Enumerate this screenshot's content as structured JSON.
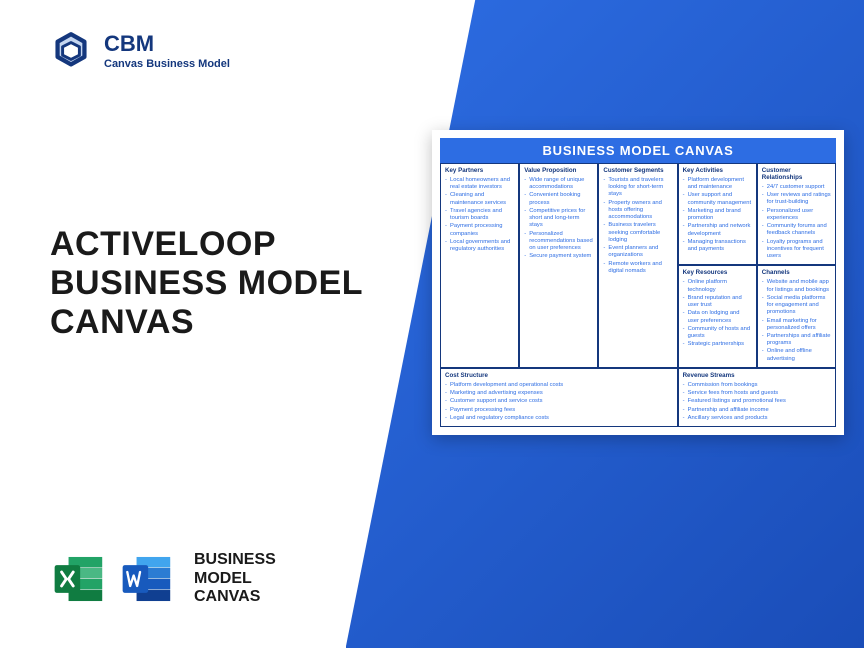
{
  "logo": {
    "title": "CBM",
    "subtitle": "Canvas Business Model",
    "icon_color": "#14377d"
  },
  "main_title": {
    "line1": "ACTIVELOOP",
    "line2": "BUSINESS MODEL",
    "line3": "CANVAS"
  },
  "footer": {
    "excel_color": "#107c41",
    "word_color": "#185abd",
    "label": {
      "line1": "BUSINESS",
      "line2": "MODEL",
      "line3": "CANVAS"
    }
  },
  "canvas": {
    "header": "BUSINESS MODEL CANVAS",
    "background_color": "#ffffff",
    "header_bg": "#2d6de3",
    "border_color": "#14377d",
    "text_color": "#2d6de3",
    "sections": {
      "key_partners": {
        "title": "Key Partners",
        "items": [
          "Local homeowners and real estate investors",
          "Cleaning and maintenance services",
          "Travel agencies and tourism boards",
          "Payment processing companies",
          "Local governments and regulatory authorities"
        ]
      },
      "key_activities": {
        "title": "Key Activities",
        "items": [
          "Platform development and maintenance",
          "User support and community management",
          "Marketing and brand promotion",
          "Partnership and network development",
          "Managing transactions and payments"
        ]
      },
      "value_proposition": {
        "title": "Value Proposition",
        "items": [
          "Wide range of unique accommodations",
          "Convenient booking process",
          "Competitive prices for short and long-term stays",
          "Personalized recommendations based on user preferences",
          "Secure payment system"
        ]
      },
      "customer_relationships": {
        "title": "Customer Relationships",
        "items": [
          "24/7 customer support",
          "User reviews and ratings for trust-building",
          "Personalized user experiences",
          "Community forums and feedback channels",
          "Loyalty programs and incentives for frequent users"
        ]
      },
      "customer_segments": {
        "title": "Customer Segments",
        "items": [
          "Tourists and travelers looking for short-term stays",
          "Property owners and hosts offering accommodations",
          "Business travelers seeking comfortable lodging",
          "Event planners and organizations",
          "Remote workers and digital nomads"
        ]
      },
      "key_resources": {
        "title": "Key Resources",
        "items": [
          "Online platform technology",
          "Brand reputation and user trust",
          "Data on lodging and user preferences",
          "Community of hosts and guests",
          "Strategic partnerships"
        ]
      },
      "channels": {
        "title": "Channels",
        "items": [
          "Website and mobile app for listings and bookings",
          "Social media platforms for engagement and promotions",
          "Email marketing for personalized offers",
          "Partnerships and affiliate programs",
          "Online and offline advertising"
        ]
      },
      "cost_structure": {
        "title": "Cost Structure",
        "items": [
          "Platform development and operational costs",
          "Marketing and advertising expenses",
          "Customer support and service costs",
          "Payment processing fees",
          "Legal and regulatory compliance costs"
        ]
      },
      "revenue_streams": {
        "title": "Revenue Streams",
        "items": [
          "Commission from bookings",
          "Service fees from hosts and guests",
          "Featured listings and promotional fees",
          "Partnership and affiliate income",
          "Ancillary services and products"
        ]
      }
    }
  }
}
